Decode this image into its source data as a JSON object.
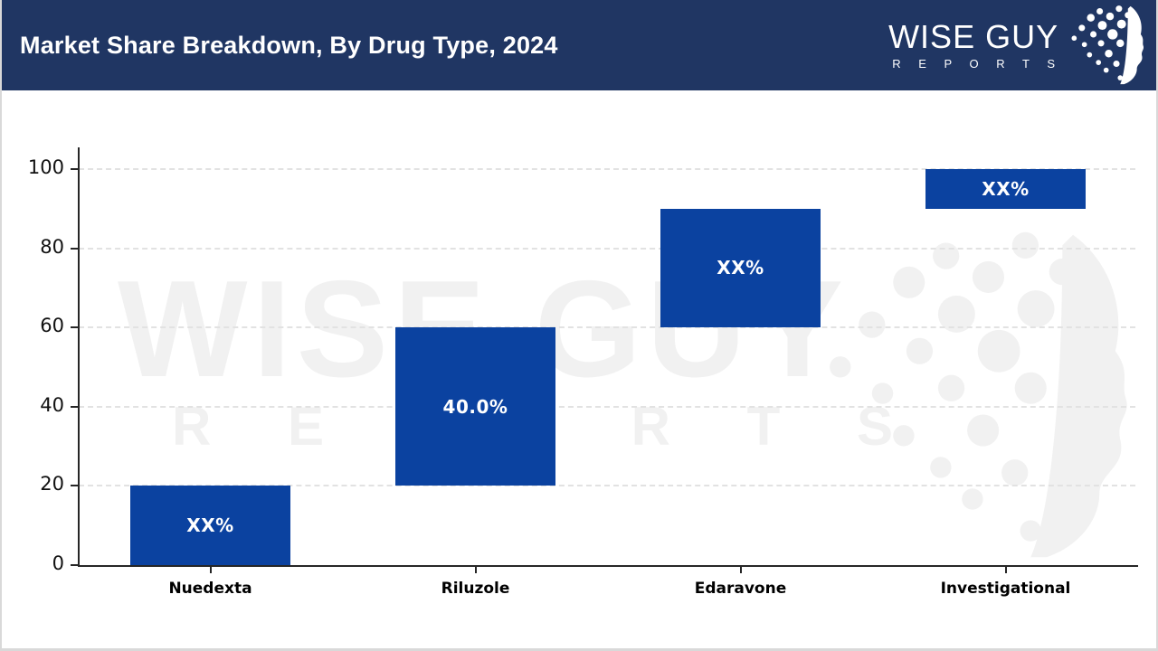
{
  "header": {
    "title": "Market Share Breakdown, By Drug Type, 2024",
    "logo": {
      "name": "WISE GUY",
      "sub": "R E P O R T S"
    }
  },
  "watermark": {
    "line1": "WISE GUY",
    "line2": "R E P O R T S"
  },
  "colors": {
    "header_bg": "#203663",
    "bar": "#0b42a0",
    "bar_label": "#ffffff",
    "grid": "#e2e2e2",
    "axis": "#262626",
    "watermark": "#f1f1f1"
  },
  "chart_data": {
    "type": "bar",
    "subtype": "waterfall",
    "title": "Market Share Breakdown, By Drug Type, 2024",
    "categories": [
      "Nuedexta",
      "Riluzole",
      "Edaravone",
      "Investigational"
    ],
    "segments": [
      {
        "category": "Nuedexta",
        "start": 0,
        "end": 20,
        "label": "XX%"
      },
      {
        "category": "Riluzole",
        "start": 20,
        "end": 60,
        "label": "40.0%"
      },
      {
        "category": "Edaravone",
        "start": 60,
        "end": 90,
        "label": "XX%"
      },
      {
        "category": "Investigational",
        "start": 90,
        "end": 100,
        "label": "XX%"
      }
    ],
    "ylabel": "",
    "xlabel": "",
    "yticks": [
      0,
      20,
      40,
      60,
      80,
      100
    ],
    "ylim": [
      0,
      105
    ],
    "grid": "horizontal-dashed",
    "legend": "none"
  }
}
